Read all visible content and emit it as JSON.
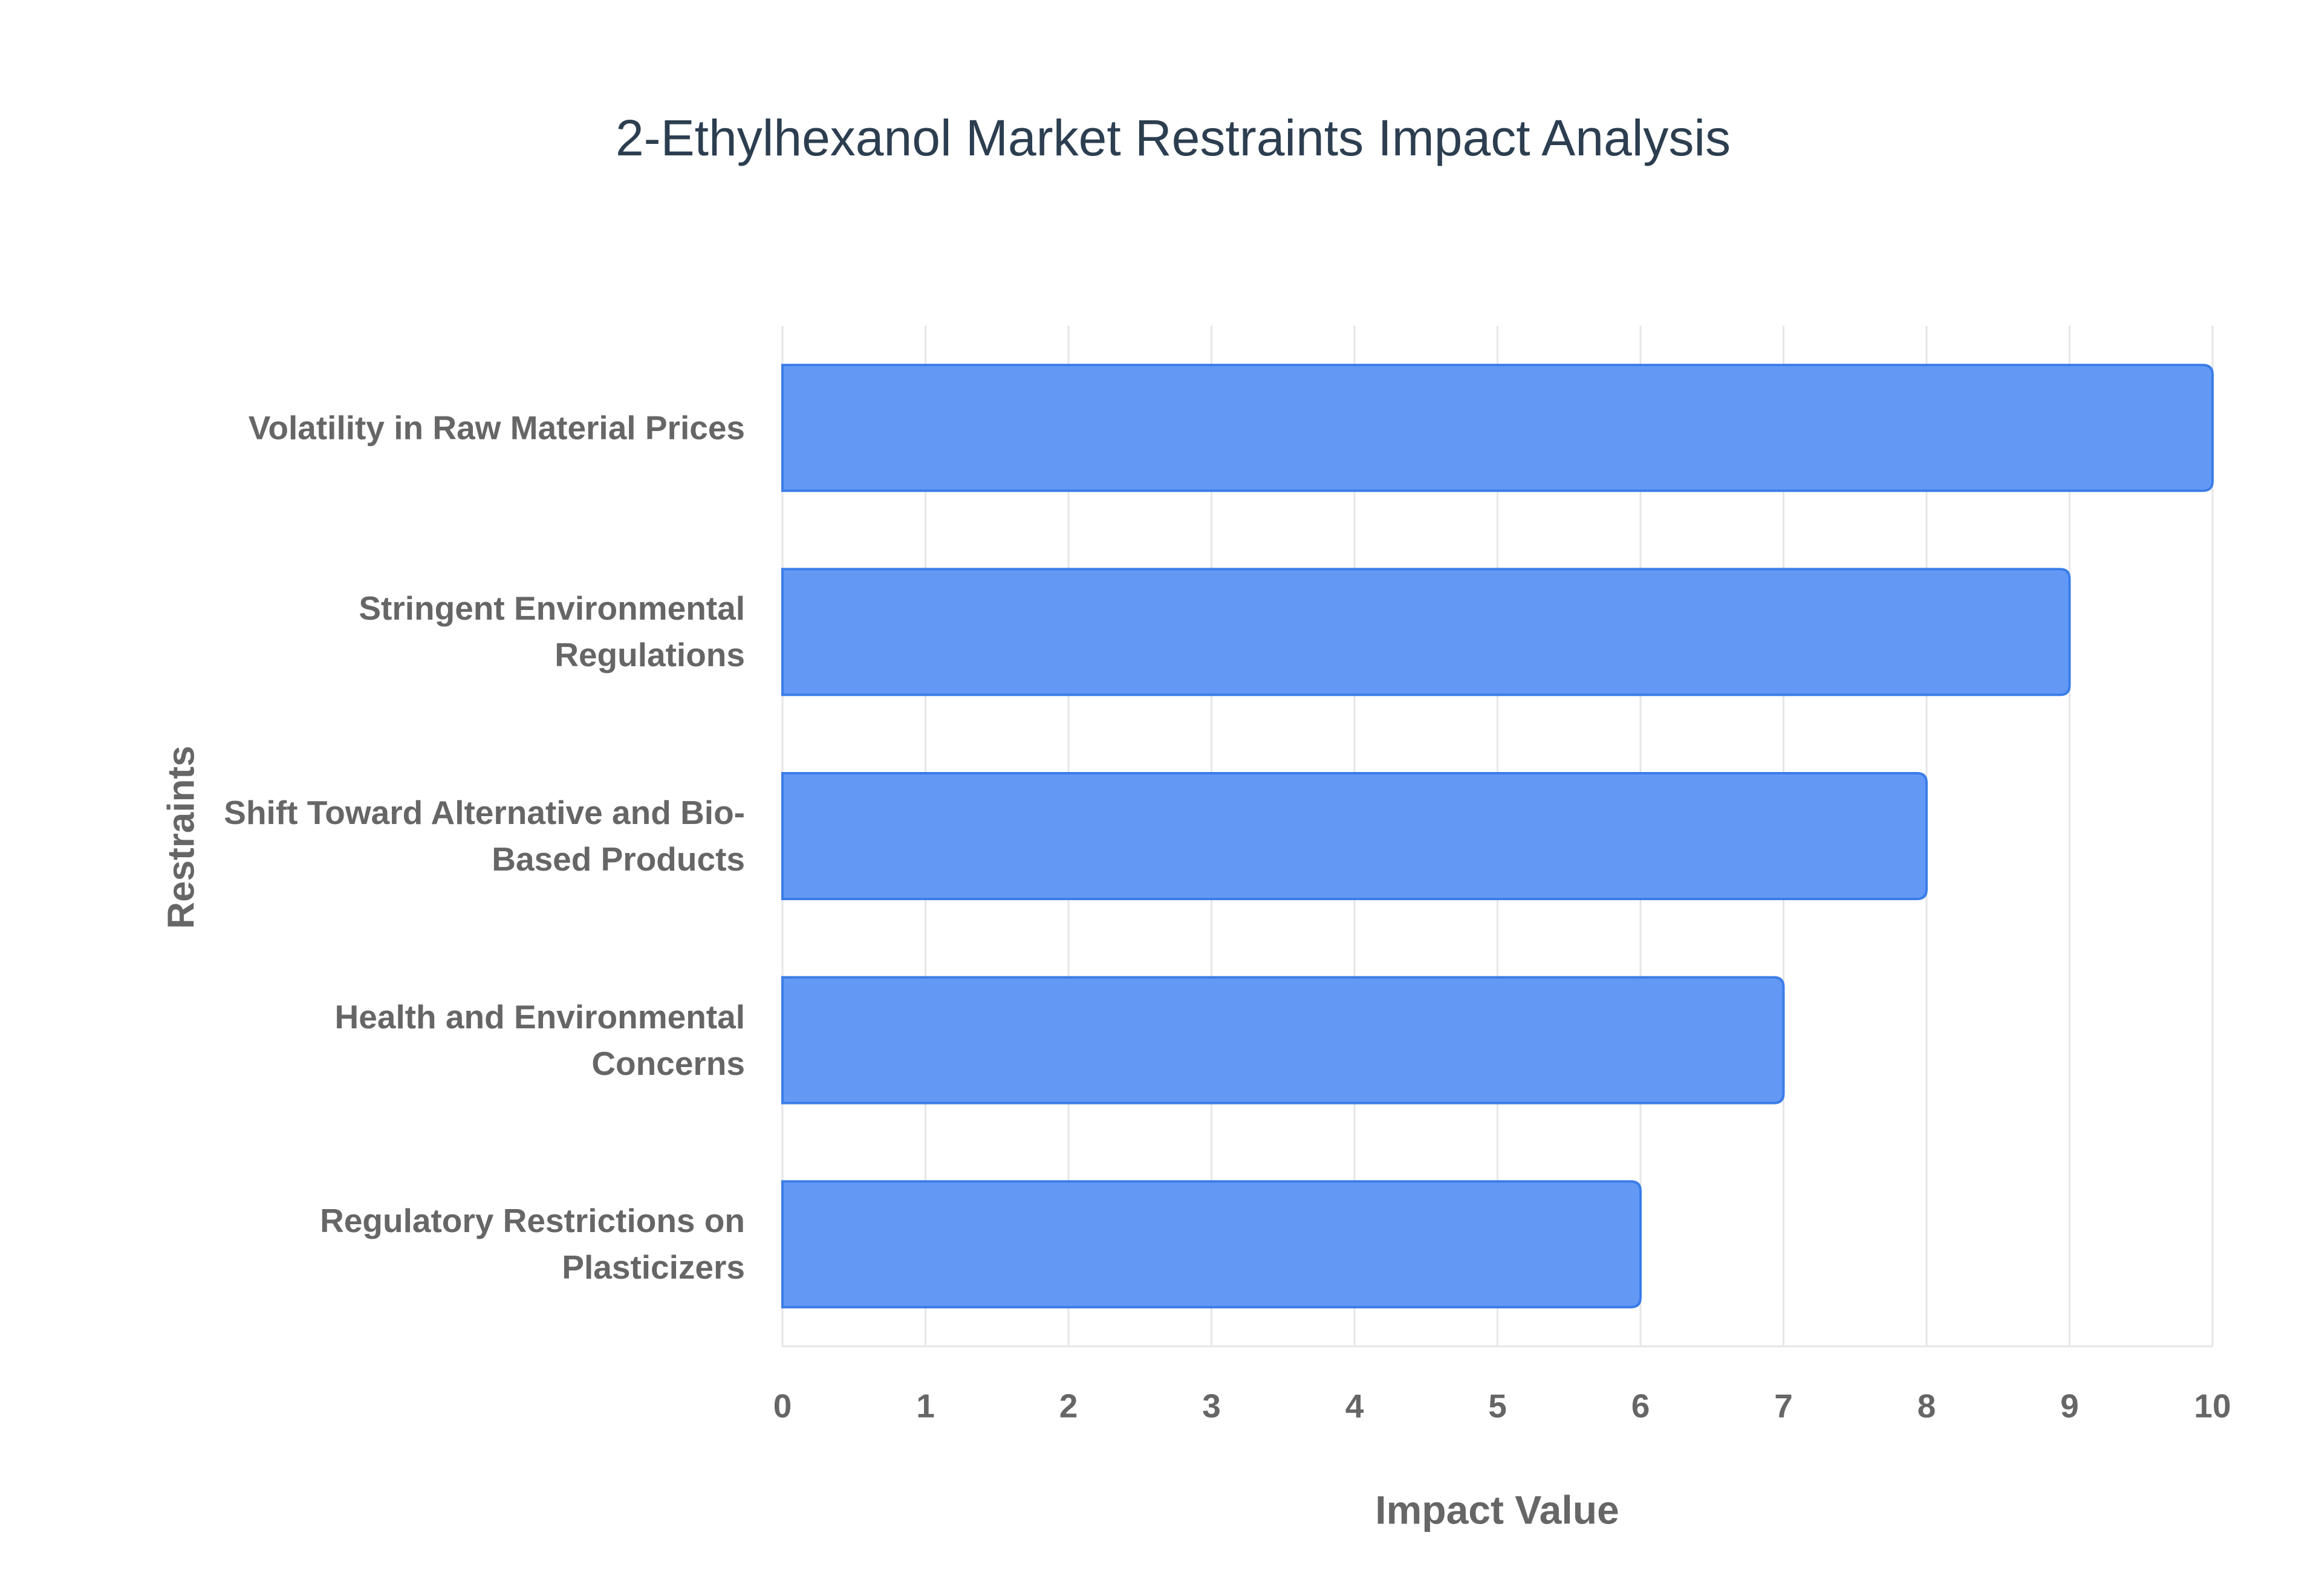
{
  "chart_data": {
    "type": "bar",
    "orientation": "horizontal",
    "title": "2-Ethylhexanol Market Restraints Impact Analysis",
    "x_label": "Impact Value",
    "y_label": "Restraints",
    "categories": [
      "Volatility in Raw Material Prices",
      "Stringent Environmental Regulations",
      "Shift Toward Alternative and Bio-Based Products",
      "Health and Environmental Concerns",
      "Regulatory Restrictions on Plasticizers"
    ],
    "values": [
      10,
      9,
      8,
      7,
      6
    ],
    "color": "#6399f5",
    "border_color": "#3b7de8",
    "xlim": [
      0,
      10
    ],
    "xticks": [
      0,
      1,
      2,
      3,
      4,
      5,
      6,
      7,
      8,
      9,
      10
    ],
    "grid": true
  }
}
